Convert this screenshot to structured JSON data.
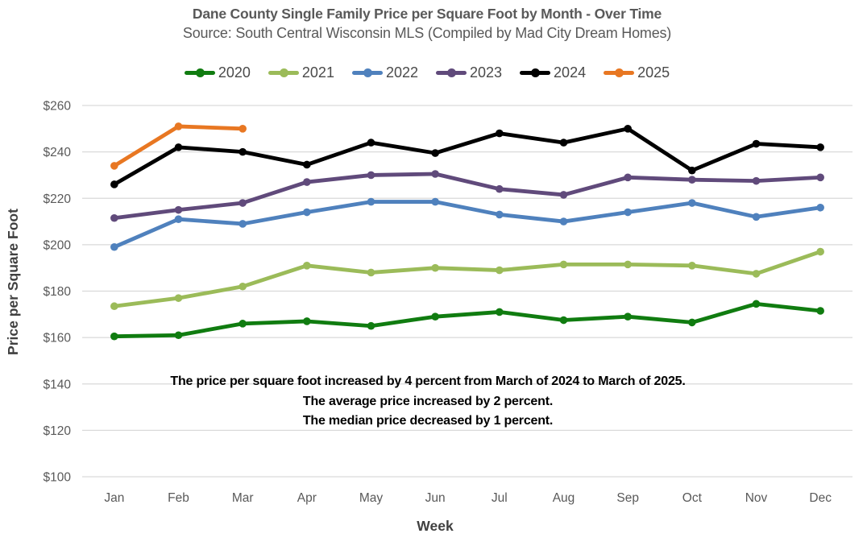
{
  "title": "Dane County Single Family Price per Square Foot by Month - Over Time",
  "subtitle": "Source: South Central Wisconsin MLS (Compiled by Mad City Dream Homes)",
  "annotation": {
    "lines": [
      "The price per square foot increased by 4 percent from March of 2024 to March of 2025.",
      "The average price increased by 2 percent.",
      "The median price decreased by 1 percent."
    ]
  },
  "colors": {
    "gridline": "#d9d9d9",
    "axis_text": "#595959",
    "title_text": "#595959",
    "axis_title_text": "#404040",
    "annotation_text": "#000000"
  },
  "chart_data": {
    "type": "line",
    "title": "Dane County Single Family Price per Square Foot by Month - Over Time",
    "subtitle": "Source: South Central Wisconsin MLS (Compiled by Mad City Dream Homes)",
    "categories": [
      "Jan",
      "Feb",
      "Mar",
      "Apr",
      "May",
      "Jun",
      "Jul",
      "Aug",
      "Sep",
      "Oct",
      "Nov",
      "Dec"
    ],
    "series": [
      {
        "name": "2020",
        "color": "#107c10",
        "values": [
          160.5,
          161,
          166,
          167,
          165,
          169,
          171,
          167.5,
          169,
          166.5,
          174.5,
          171.5
        ]
      },
      {
        "name": "2021",
        "color": "#9bbb59",
        "values": [
          173.5,
          177,
          182,
          191,
          188,
          190,
          189,
          191.5,
          191.5,
          191,
          187.5,
          197
        ]
      },
      {
        "name": "2022",
        "color": "#4f81bd",
        "values": [
          199,
          211,
          209,
          214,
          218.5,
          218.5,
          213,
          210,
          214,
          218,
          212,
          216
        ]
      },
      {
        "name": "2023",
        "color": "#604a7b",
        "values": [
          211.5,
          215,
          218,
          227,
          230,
          230.5,
          224,
          221.5,
          229,
          228,
          227.5,
          229
        ]
      },
      {
        "name": "2024",
        "color": "#000000",
        "values": [
          226,
          242,
          240,
          234.5,
          244,
          239.5,
          248,
          244,
          250,
          232,
          243.5,
          242
        ]
      },
      {
        "name": "2025",
        "color": "#e87722",
        "values": [
          234,
          251,
          250
        ]
      }
    ],
    "xlabel": "Week",
    "ylabel": "Price per Square Foot",
    "ylim": [
      100,
      260
    ],
    "ytick_step": 20,
    "ytick_prefix": "$",
    "grid": "horizontal",
    "legend_position": "top",
    "marker": "circle"
  }
}
